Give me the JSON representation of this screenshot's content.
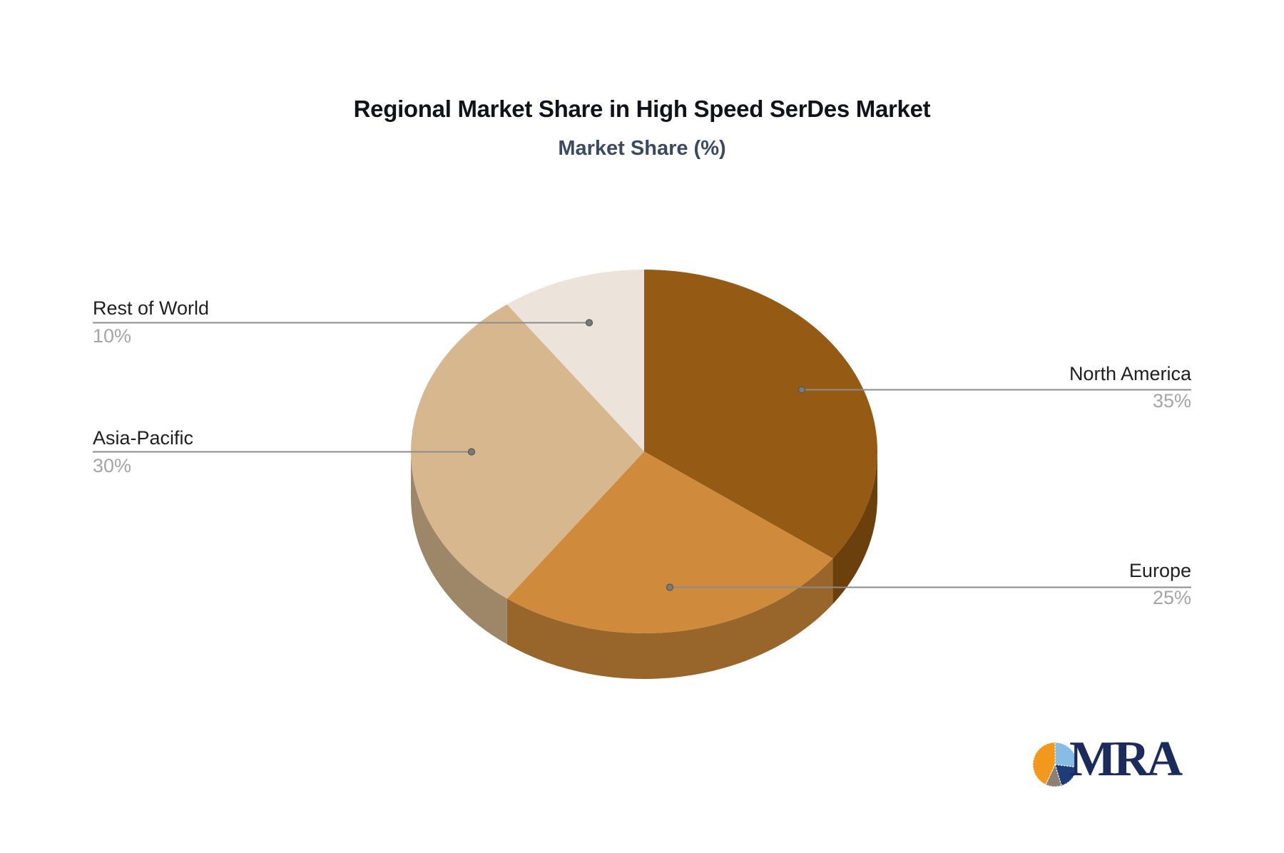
{
  "chart_data": {
    "type": "pie",
    "title": "Regional Market Share in High Speed SerDes Market",
    "subtitle": "Market Share (%)",
    "unit": "percent",
    "start_angle_deg": 0,
    "direction": "clockwise",
    "effect": "3d",
    "legend_position": "none",
    "slices": [
      {
        "label": "North America",
        "value": 35,
        "pct_label": "35%",
        "color": "#955A13",
        "side_color": "#6B400D"
      },
      {
        "label": "Europe",
        "value": 25,
        "pct_label": "25%",
        "color": "#CF8B3B",
        "side_color": "#98662B"
      },
      {
        "label": "Asia-Pacific",
        "value": 30,
        "pct_label": "30%",
        "color": "#D7B78E",
        "side_color": "#9E8768"
      },
      {
        "label": "Rest of World",
        "value": 10,
        "pct_label": "10%",
        "color": "#ECE4DB",
        "side_color": "#ABA49D"
      }
    ],
    "label_text_color": "#1f1f1f",
    "pct_text_color": "#a5a5a5",
    "leader_line_color": "#8c8c8c"
  },
  "logo": {
    "text": "MRA",
    "text_color": "#1B2B5C",
    "icon_slices": [
      {
        "name": "light-blue",
        "value": 97,
        "color": "#87BCE5"
      },
      {
        "name": "navy",
        "value": 66,
        "color": "#1D3C78"
      },
      {
        "name": "taupe",
        "value": 42,
        "color": "#8E8173"
      },
      {
        "name": "orange",
        "value": 155,
        "color": "#F2991D"
      }
    ]
  }
}
